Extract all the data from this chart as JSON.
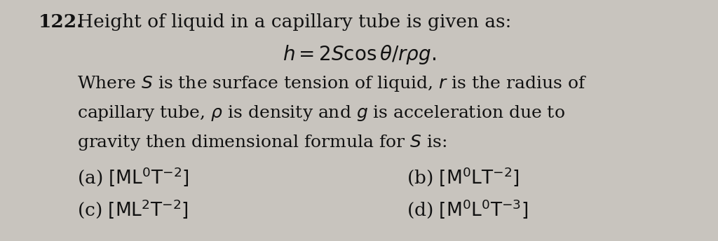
{
  "background_color": "#c8c4be",
  "question_number": "122.",
  "title_text": "Height of liquid in a capillary tube is given as:",
  "formula": "$h = 2S\\cos\\theta/r\\rho g.$",
  "desc1": "Where $S$ is the surface tension of liquid, $r$ is the radius of",
  "desc2": "capillary tube, $\\rho$ is density and $g$ is acceleration due to",
  "desc3": "gravity then dimensional formula for $S$ is:",
  "option_a": "(a) $[\\mathrm{ML}^0\\mathrm{T}^{-2}]$",
  "option_b": "(b) $[\\mathrm{M}^0\\mathrm{LT}^{-2}]$",
  "option_c": "(c) $[\\mathrm{ML}^2\\mathrm{T}^{-2}]$",
  "option_d": "(d) $[\\mathrm{M}^0\\mathrm{L}^0\\mathrm{T}^{-3}]$",
  "text_color": "#111111",
  "font_size_title": 19,
  "font_size_formula": 20,
  "font_size_body": 18,
  "font_size_options": 19
}
